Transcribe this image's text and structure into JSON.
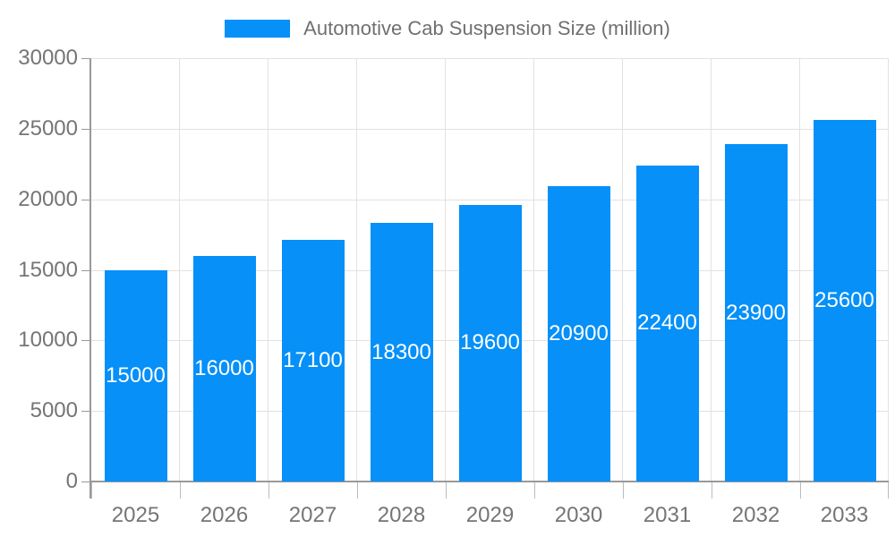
{
  "legend": {
    "label": "Automotive Cab Suspension Size (million)"
  },
  "chart_data": {
    "type": "bar",
    "title": "Automotive Cab Suspension Size (million)",
    "series_name": "Automotive Cab Suspension Size (million)",
    "categories": [
      "2025",
      "2026",
      "2027",
      "2028",
      "2029",
      "2030",
      "2031",
      "2032",
      "2033"
    ],
    "values": [
      15000,
      16000,
      17100,
      18300,
      19600,
      20900,
      22400,
      23900,
      25600
    ],
    "xlabel": "",
    "ylabel": "",
    "ylim": [
      0,
      30000
    ],
    "yticks": [
      0,
      5000,
      10000,
      15000,
      20000,
      25000,
      30000
    ],
    "grid": true,
    "legend_position": "top",
    "bar_label_position": "inside-center",
    "colors": {
      "bar": "#0690F8",
      "bar_label": "#FFFFFF",
      "axis": "#999999",
      "grid": "#E2E2E2",
      "tick": "#BBBBBB",
      "text": "#757575",
      "background": "#FFFFFF"
    }
  }
}
